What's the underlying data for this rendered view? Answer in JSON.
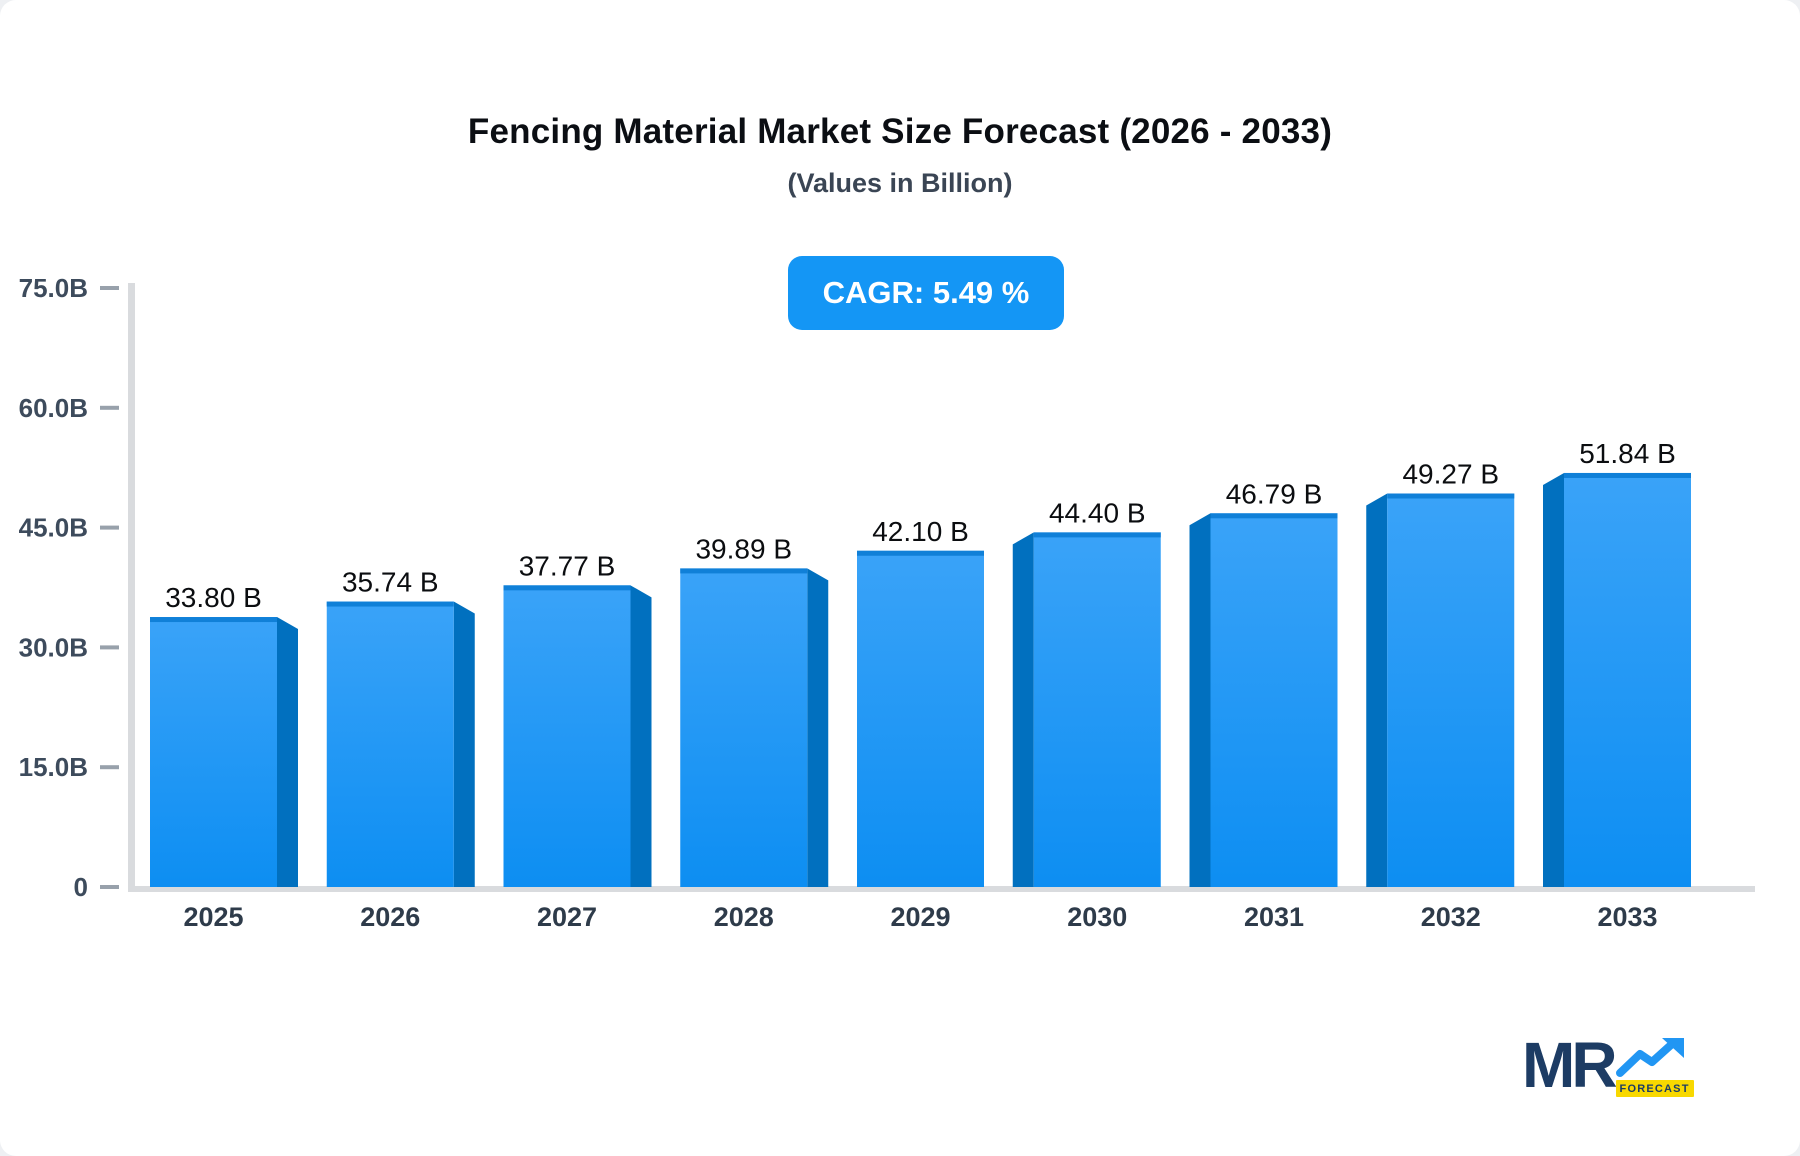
{
  "title": "Fencing Material Market Size Forecast (2026 - 2033)",
  "subtitle": "(Values in Billion)",
  "badge": {
    "label": "CAGR: 5.49 %"
  },
  "chart_data": {
    "type": "bar",
    "categories": [
      "2025",
      "2026",
      "2027",
      "2028",
      "2029",
      "2030",
      "2031",
      "2032",
      "2033"
    ],
    "values": [
      33.8,
      35.74,
      37.77,
      39.89,
      42.1,
      44.4,
      46.79,
      49.27,
      51.84
    ],
    "value_labels": [
      "33.80 B",
      "35.74 B",
      "37.77 B",
      "39.89 B",
      "42.10 B",
      "44.40 B",
      "46.79 B",
      "49.27 B",
      "51.84 B"
    ],
    "title": "Fencing Material Market Size Forecast (2026 - 2033)",
    "subtitle": "(Values in Billion)",
    "xlabel": "",
    "ylabel": "",
    "ylim": [
      0,
      75
    ],
    "yticks": {
      "values": [
        0,
        15,
        30,
        45,
        60,
        75
      ],
      "labels": [
        "0",
        "15.0B",
        "30.0B",
        "45.0B",
        "60.0B",
        "75.0B"
      ]
    },
    "grid": false,
    "legend": "none",
    "style": "3d-perspective-bars, side faces angle away from center bar (2029)",
    "colors": {
      "bar_face_top": "#3AA3F8",
      "bar_face_bottom": "#0D8EF2",
      "bar_side": "#0170BF",
      "bar_top_edge": "#1080D8",
      "axis_line": "#D9DBDE",
      "tick_dash": "#98A1AB",
      "tick_text": "#3D4B5C",
      "year_text": "#2E3B4A",
      "value_text": "#0B0D10",
      "badge_bg": "#1496F5",
      "badge_text": "#FFFFFF"
    }
  },
  "logo": {
    "text": "MR",
    "sub": "FORECAST",
    "colors": {
      "navy": "#1D3C64",
      "blue": "#2196F3",
      "yellow": "#F8D800"
    }
  }
}
